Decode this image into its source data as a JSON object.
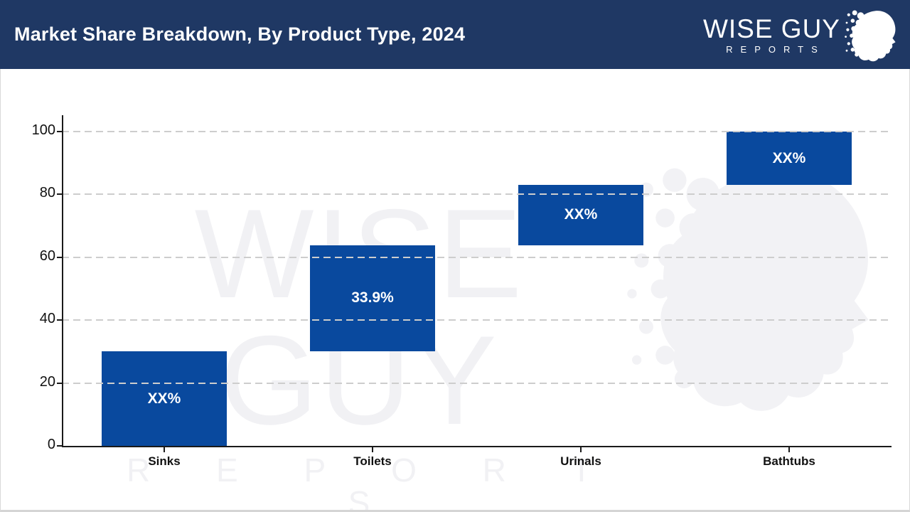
{
  "header": {
    "title": "Market Share Breakdown, By Product Type, 2024",
    "logo": {
      "line1": "WISE GUY",
      "line2": "REPORTS"
    }
  },
  "watermark": {
    "line1": "WISE GUY",
    "line2": "R E P O R T S"
  },
  "colors": {
    "header_bg": "#1f3864",
    "bar": "#09499e",
    "grid": "#cdcdcd",
    "axis": "#1a1a1a",
    "bar_label": "#ffffff",
    "watermark": "#f1f1f4"
  },
  "chart_data": {
    "type": "bar",
    "subtype": "floating-waterfall",
    "title": "Market Share Breakdown, By Product Type, 2024",
    "xlabel": "",
    "ylabel": "",
    "categories": [
      "Sinks",
      "Toilets",
      "Urinals",
      "Bathtubs"
    ],
    "segments": [
      {
        "category": "Sinks",
        "start": 0,
        "end": 30,
        "label": "XX%"
      },
      {
        "category": "Toilets",
        "start": 30,
        "end": 63.9,
        "label": "33.9%"
      },
      {
        "category": "Urinals",
        "start": 63.9,
        "end": 83,
        "label": "XX%"
      },
      {
        "category": "Bathtubs",
        "start": 83,
        "end": 100,
        "label": "XX%"
      }
    ],
    "ylim": [
      0,
      105
    ],
    "yticks": [
      0,
      20,
      40,
      60,
      80,
      100
    ],
    "grid": "horizontal-dashed",
    "grid_above_bars": true,
    "legend": "none",
    "bar_color": "#09499e"
  }
}
